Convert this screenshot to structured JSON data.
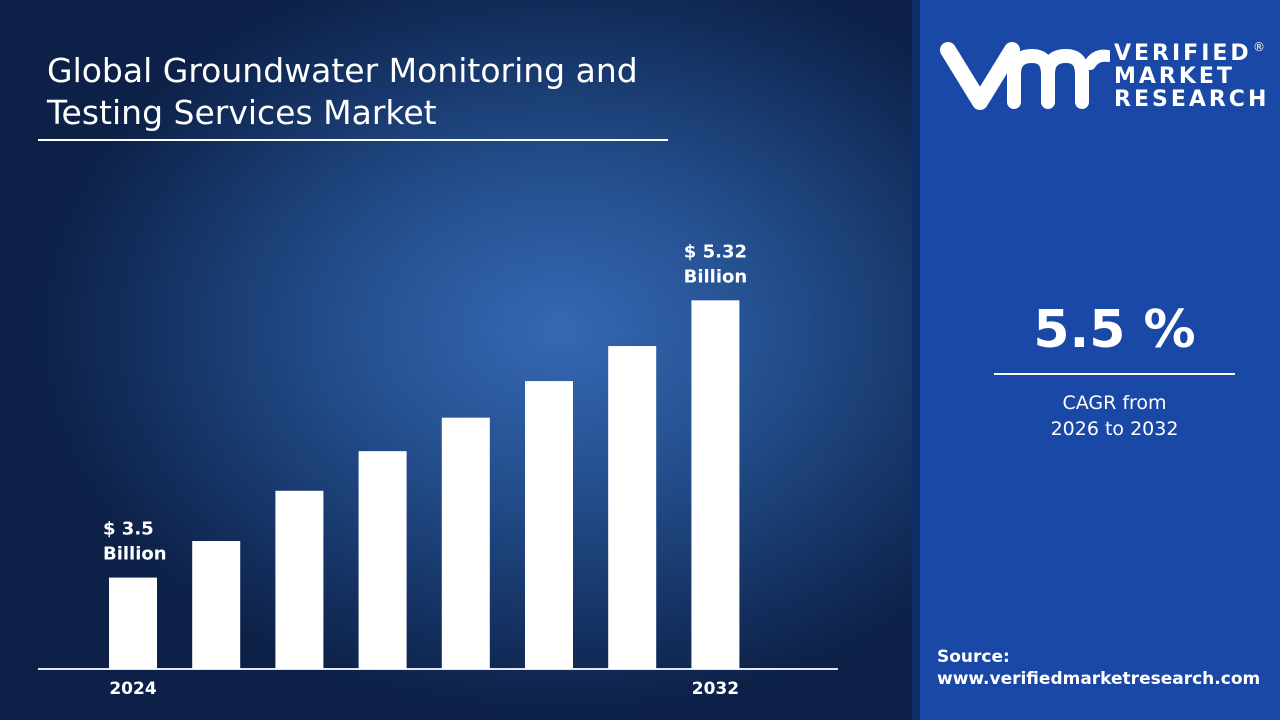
{
  "title": [
    "Global Groundwater Monitoring and",
    "Testing Services Market"
  ],
  "brand": {
    "logo_mark": "vmr",
    "name_lines": [
      "VERIFIED",
      "MARKET",
      "RESEARCH"
    ],
    "registered": "®"
  },
  "cagr": {
    "value": "5.5 %",
    "label_lines": [
      "CAGR from",
      "2026 to 2032"
    ]
  },
  "source": {
    "label": "Source:",
    "url": "www.verifiedmarketresearch.com"
  },
  "colors": {
    "bar": "#ffffff",
    "panel": "#1a48a6",
    "background": "#1c3f7a"
  },
  "chart_data": {
    "type": "bar",
    "categories": [
      "2024",
      "",
      "",
      "",
      "",
      "",
      "",
      "2032"
    ],
    "values": [
      3.5,
      3.74,
      4.07,
      4.33,
      4.55,
      4.79,
      5.02,
      5.32
    ],
    "data_labels": [
      {
        "index": 0,
        "lines": [
          "$ 3.5",
          "Billion"
        ]
      },
      {
        "index": 7,
        "lines": [
          "$ 5.32",
          "Billion"
        ]
      }
    ],
    "title": "Global Groundwater Monitoring and Testing Services Market",
    "xlabel": "",
    "ylabel": "",
    "ylim": [
      2.9,
      5.9
    ],
    "grid": false,
    "unit": "USD Billion"
  }
}
